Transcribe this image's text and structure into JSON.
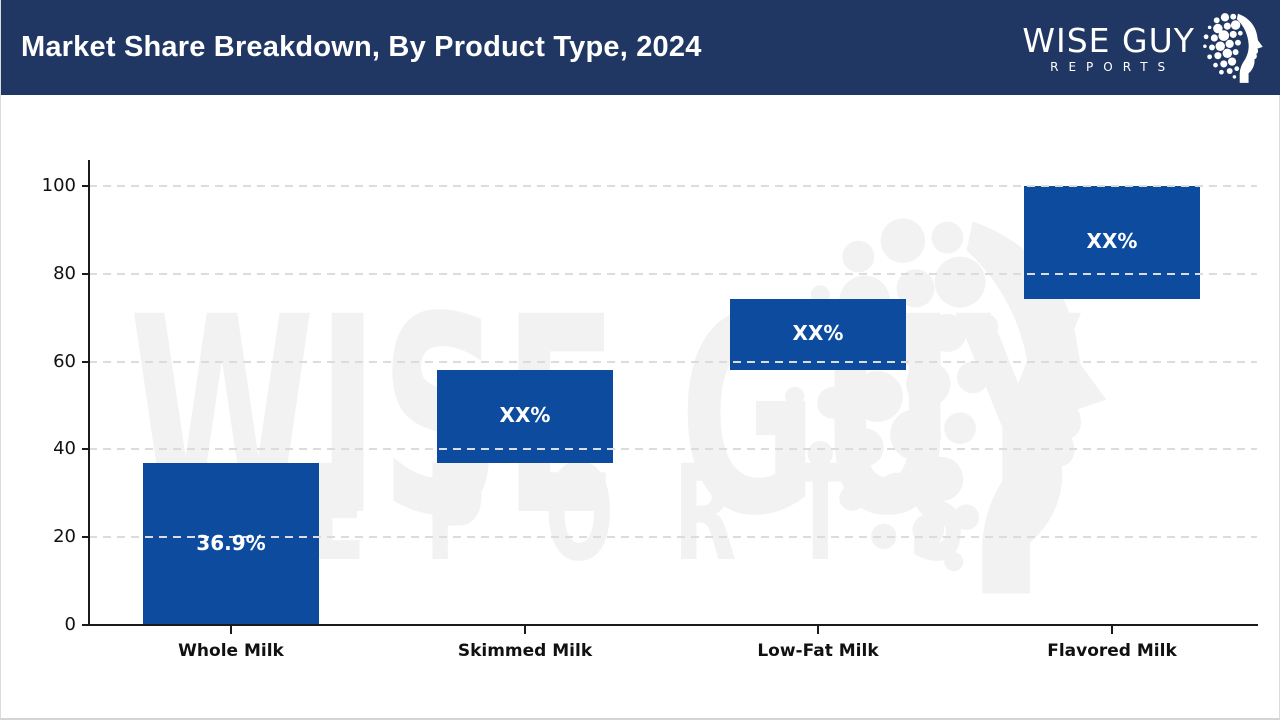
{
  "header": {
    "title": "Market Share Breakdown, By Product Type, 2024",
    "logo": {
      "line1": "WISE GUY",
      "line2": "REPORTS"
    }
  },
  "watermark": {
    "line1": "WISE GUY",
    "line2": "REPORTS"
  },
  "colors": {
    "header_bg": "#213763",
    "bar": "#0d4b9f",
    "grid": "#dcdcdc",
    "axis": "#1a1a1a",
    "watermark": "#f2f2f2",
    "bar_label": "#ffffff"
  },
  "chart_data": {
    "type": "bar",
    "subtype": "waterfall",
    "title": "Market Share Breakdown, By Product Type, 2024",
    "categories": [
      "Whole Milk",
      "Skimmed Milk",
      "Low-Fat Milk",
      "Flavored Milk"
    ],
    "segments": [
      {
        "category": "Whole Milk",
        "start": 0,
        "end": 36.9,
        "label": "36.9%"
      },
      {
        "category": "Skimmed Milk",
        "start": 36.9,
        "end": 58.1,
        "label": "XX%"
      },
      {
        "category": "Low-Fat Milk",
        "start": 58.1,
        "end": 74.3,
        "label": "XX%"
      },
      {
        "category": "Flavored Milk",
        "start": 74.3,
        "end": 100,
        "label": "XX%"
      }
    ],
    "ylim": [
      0,
      100
    ],
    "yticks": [
      0,
      20,
      40,
      60,
      80,
      100
    ],
    "xlabel": "",
    "ylabel": "",
    "grid": "dashed-horizontal-over-bars",
    "legend": "none"
  }
}
